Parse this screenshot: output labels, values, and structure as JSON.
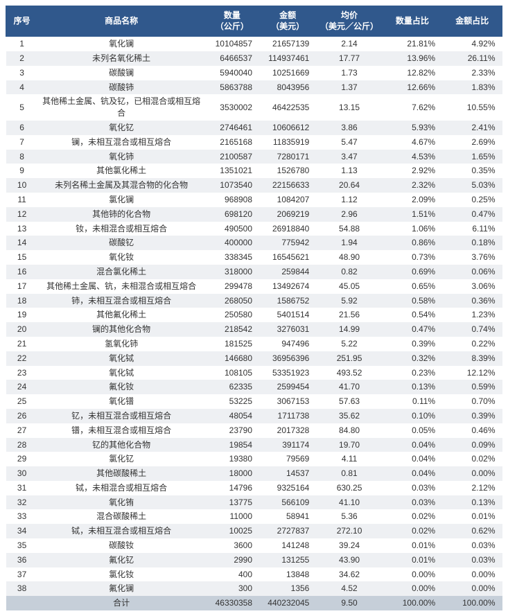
{
  "header": {
    "seq": "序号",
    "name": "商品名称",
    "qty": "数量\n（公斤）",
    "amt": "金额\n（美元）",
    "avg": "均价\n（美元／公斤）",
    "qpct": "数量占比",
    "apct": "金额占比"
  },
  "colors": {
    "header_bg": "#30588c",
    "header_fg": "#ffffff",
    "row_odd_bg": "#ffffff",
    "row_even_bg": "#eef0f3",
    "total_bg": "#c6cfd9"
  },
  "rows": [
    {
      "seq": "1",
      "name": "氧化镧",
      "qty": "10104857",
      "amt": "21657139",
      "avg": "2.14",
      "qpct": "21.81%",
      "apct": "4.92%"
    },
    {
      "seq": "2",
      "name": "未列名氧化稀土",
      "qty": "6466537",
      "amt": "114937461",
      "avg": "17.77",
      "qpct": "13.96%",
      "apct": "26.11%"
    },
    {
      "seq": "3",
      "name": "碳酸镧",
      "qty": "5940040",
      "amt": "10251669",
      "avg": "1.73",
      "qpct": "12.82%",
      "apct": "2.33%"
    },
    {
      "seq": "4",
      "name": "碳酸铈",
      "qty": "5863788",
      "amt": "8043956",
      "avg": "1.37",
      "qpct": "12.66%",
      "apct": "1.83%"
    },
    {
      "seq": "5",
      "name": "其他稀土金属、钪及钇，已相混合或相互熔合",
      "qty": "3530002",
      "amt": "46422535",
      "avg": "13.15",
      "qpct": "7.62%",
      "apct": "10.55%"
    },
    {
      "seq": "6",
      "name": "氧化钇",
      "qty": "2746461",
      "amt": "10606612",
      "avg": "3.86",
      "qpct": "5.93%",
      "apct": "2.41%"
    },
    {
      "seq": "7",
      "name": "镧，未相互混合或相互熔合",
      "qty": "2165168",
      "amt": "11835919",
      "avg": "5.47",
      "qpct": "4.67%",
      "apct": "2.69%"
    },
    {
      "seq": "8",
      "name": "氧化铈",
      "qty": "2100587",
      "amt": "7280171",
      "avg": "3.47",
      "qpct": "4.53%",
      "apct": "1.65%"
    },
    {
      "seq": "9",
      "name": "其他氯化稀土",
      "qty": "1351021",
      "amt": "1526780",
      "avg": "1.13",
      "qpct": "2.92%",
      "apct": "0.35%"
    },
    {
      "seq": "10",
      "name": "未列名稀土金属及其混合物的化合物",
      "qty": "1073540",
      "amt": "22156633",
      "avg": "20.64",
      "qpct": "2.32%",
      "apct": "5.03%"
    },
    {
      "seq": "11",
      "name": "氯化镧",
      "qty": "968908",
      "amt": "1084207",
      "avg": "1.12",
      "qpct": "2.09%",
      "apct": "0.25%"
    },
    {
      "seq": "12",
      "name": "其他铈的化合物",
      "qty": "698120",
      "amt": "2069219",
      "avg": "2.96",
      "qpct": "1.51%",
      "apct": "0.47%"
    },
    {
      "seq": "13",
      "name": "钕，未相混合或相互熔合",
      "qty": "490500",
      "amt": "26918840",
      "avg": "54.88",
      "qpct": "1.06%",
      "apct": "6.11%"
    },
    {
      "seq": "14",
      "name": "碳酸钇",
      "qty": "400000",
      "amt": "775942",
      "avg": "1.94",
      "qpct": "0.86%",
      "apct": "0.18%"
    },
    {
      "seq": "15",
      "name": "氧化钕",
      "qty": "338345",
      "amt": "16545621",
      "avg": "48.90",
      "qpct": "0.73%",
      "apct": "3.76%"
    },
    {
      "seq": "16",
      "name": "混合氯化稀土",
      "qty": "318000",
      "amt": "259844",
      "avg": "0.82",
      "qpct": "0.69%",
      "apct": "0.06%"
    },
    {
      "seq": "17",
      "name": "其他稀土金属、钪，未相混合或相互熔合",
      "qty": "299478",
      "amt": "13492674",
      "avg": "45.05",
      "qpct": "0.65%",
      "apct": "3.06%"
    },
    {
      "seq": "18",
      "name": "铈，未相互混合或相互熔合",
      "qty": "268050",
      "amt": "1586752",
      "avg": "5.92",
      "qpct": "0.58%",
      "apct": "0.36%"
    },
    {
      "seq": "19",
      "name": "其他氟化稀土",
      "qty": "250580",
      "amt": "5401514",
      "avg": "21.56",
      "qpct": "0.54%",
      "apct": "1.23%"
    },
    {
      "seq": "20",
      "name": "镧的其他化合物",
      "qty": "218542",
      "amt": "3276031",
      "avg": "14.99",
      "qpct": "0.47%",
      "apct": "0.74%"
    },
    {
      "seq": "21",
      "name": "氢氧化铈",
      "qty": "181525",
      "amt": "947496",
      "avg": "5.22",
      "qpct": "0.39%",
      "apct": "0.22%"
    },
    {
      "seq": "22",
      "name": "氧化铽",
      "qty": "146680",
      "amt": "36956396",
      "avg": "251.95",
      "qpct": "0.32%",
      "apct": "8.39%"
    },
    {
      "seq": "23",
      "name": "氧化铽",
      "qty": "108105",
      "amt": "53351923",
      "avg": "493.52",
      "qpct": "0.23%",
      "apct": "12.12%"
    },
    {
      "seq": "24",
      "name": "氟化钕",
      "qty": "62335",
      "amt": "2599454",
      "avg": "41.70",
      "qpct": "0.13%",
      "apct": "0.59%"
    },
    {
      "seq": "25",
      "name": "氧化镨",
      "qty": "53225",
      "amt": "3067153",
      "avg": "57.63",
      "qpct": "0.11%",
      "apct": "0.70%"
    },
    {
      "seq": "26",
      "name": "钇，未相互混合或相互熔合",
      "qty": "48054",
      "amt": "1711738",
      "avg": "35.62",
      "qpct": "0.10%",
      "apct": "0.39%"
    },
    {
      "seq": "27",
      "name": "镨，未相互混合或相互熔合",
      "qty": "23790",
      "amt": "2017328",
      "avg": "84.80",
      "qpct": "0.05%",
      "apct": "0.46%"
    },
    {
      "seq": "28",
      "name": "钇的其他化合物",
      "qty": "19854",
      "amt": "391174",
      "avg": "19.70",
      "qpct": "0.04%",
      "apct": "0.09%"
    },
    {
      "seq": "29",
      "name": "氯化钇",
      "qty": "19380",
      "amt": "79569",
      "avg": "4.11",
      "qpct": "0.04%",
      "apct": "0.02%"
    },
    {
      "seq": "30",
      "name": "其他碳酸稀土",
      "qty": "18000",
      "amt": "14537",
      "avg": "0.81",
      "qpct": "0.04%",
      "apct": "0.00%"
    },
    {
      "seq": "31",
      "name": "铽，未相混合或相互熔合",
      "qty": "14796",
      "amt": "9325164",
      "avg": "630.25",
      "qpct": "0.03%",
      "apct": "2.12%"
    },
    {
      "seq": "32",
      "name": "氧化铕",
      "qty": "13775",
      "amt": "566109",
      "avg": "41.10",
      "qpct": "0.03%",
      "apct": "0.13%"
    },
    {
      "seq": "33",
      "name": "混合碳酸稀土",
      "qty": "11000",
      "amt": "58941",
      "avg": "5.36",
      "qpct": "0.02%",
      "apct": "0.01%"
    },
    {
      "seq": "34",
      "name": "铽，未相互混合或相互熔合",
      "qty": "10025",
      "amt": "2727837",
      "avg": "272.10",
      "qpct": "0.02%",
      "apct": "0.62%"
    },
    {
      "seq": "35",
      "name": "碳酸钕",
      "qty": "3600",
      "amt": "141248",
      "avg": "39.24",
      "qpct": "0.01%",
      "apct": "0.03%"
    },
    {
      "seq": "36",
      "name": "氟化钇",
      "qty": "2990",
      "amt": "131255",
      "avg": "43.90",
      "qpct": "0.01%",
      "apct": "0.03%"
    },
    {
      "seq": "37",
      "name": "氯化钕",
      "qty": "400",
      "amt": "13848",
      "avg": "34.62",
      "qpct": "0.00%",
      "apct": "0.00%"
    },
    {
      "seq": "38",
      "name": "氟化镧",
      "qty": "300",
      "amt": "1356",
      "avg": "4.52",
      "qpct": "0.00%",
      "apct": "0.00%"
    }
  ],
  "total": {
    "seq": "",
    "name": "合计",
    "qty": "46330358",
    "amt": "440232045",
    "avg": "9.50",
    "qpct": "100.00%",
    "apct": "100.00%"
  }
}
